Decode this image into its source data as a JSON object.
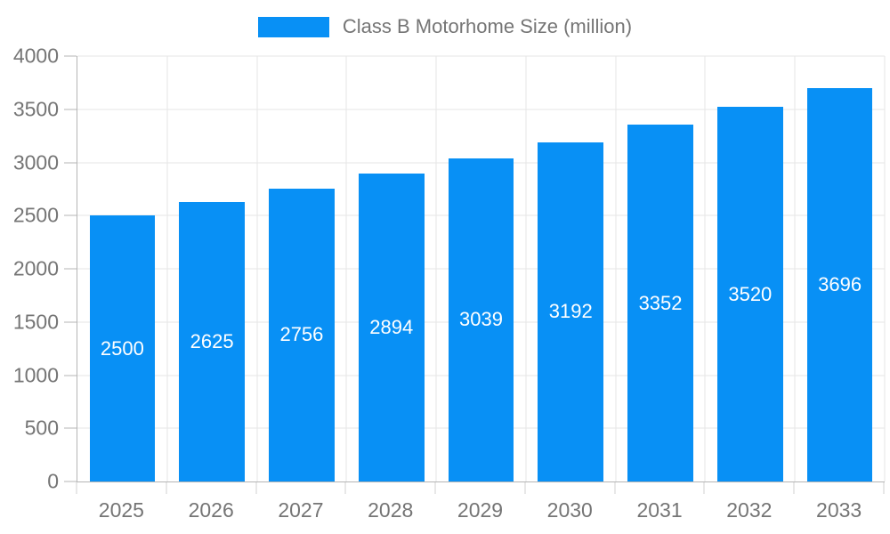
{
  "legend": {
    "label": "Class B Motorhome Size (million)"
  },
  "chart_data": {
    "type": "bar",
    "title": "Class B Motorhome Size (million)",
    "series_name": "Class B Motorhome Size (million)",
    "categories": [
      "2025",
      "2026",
      "2027",
      "2028",
      "2029",
      "2030",
      "2031",
      "2032",
      "2033"
    ],
    "values": [
      2500,
      2625,
      2756,
      2894,
      3039,
      3192,
      3352,
      3520,
      3696
    ],
    "xlabel": "",
    "ylabel": "",
    "ylim": [
      0,
      4000
    ],
    "yticks": [
      0,
      500,
      1000,
      1500,
      2000,
      2500,
      3000,
      3500,
      4000
    ],
    "grid": true,
    "legend_position": "top",
    "bar_value_labels_visible": true,
    "colors": {
      "bar": "#0890F5",
      "bar_label": "#FFFFFF",
      "axis_text": "#757575",
      "gridline": "#E6E6E6",
      "axis_line": "#B5B5B5",
      "tick": "#D2D2D2"
    }
  }
}
